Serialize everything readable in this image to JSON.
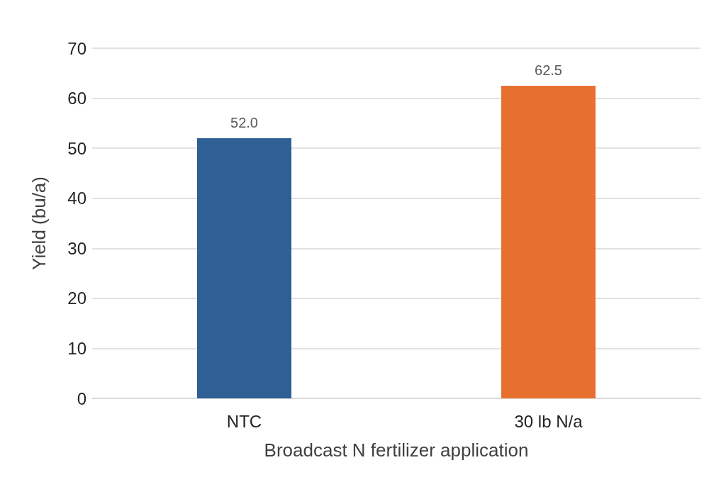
{
  "chart_data": {
    "type": "bar",
    "xlabel": "Broadcast N fertilizer application",
    "ylabel": "Yield (bu/a)",
    "categories": [
      "NTC",
      "30 lb N/a"
    ],
    "values": [
      52.0,
      62.5
    ],
    "colors": [
      "#2e5f95",
      "#e8702f"
    ],
    "value_labels": [
      "52.0",
      "62.5"
    ],
    "ylim": [
      0,
      70
    ],
    "yticks": [
      0,
      10,
      20,
      30,
      40,
      50,
      60,
      70
    ],
    "grid": "y"
  }
}
